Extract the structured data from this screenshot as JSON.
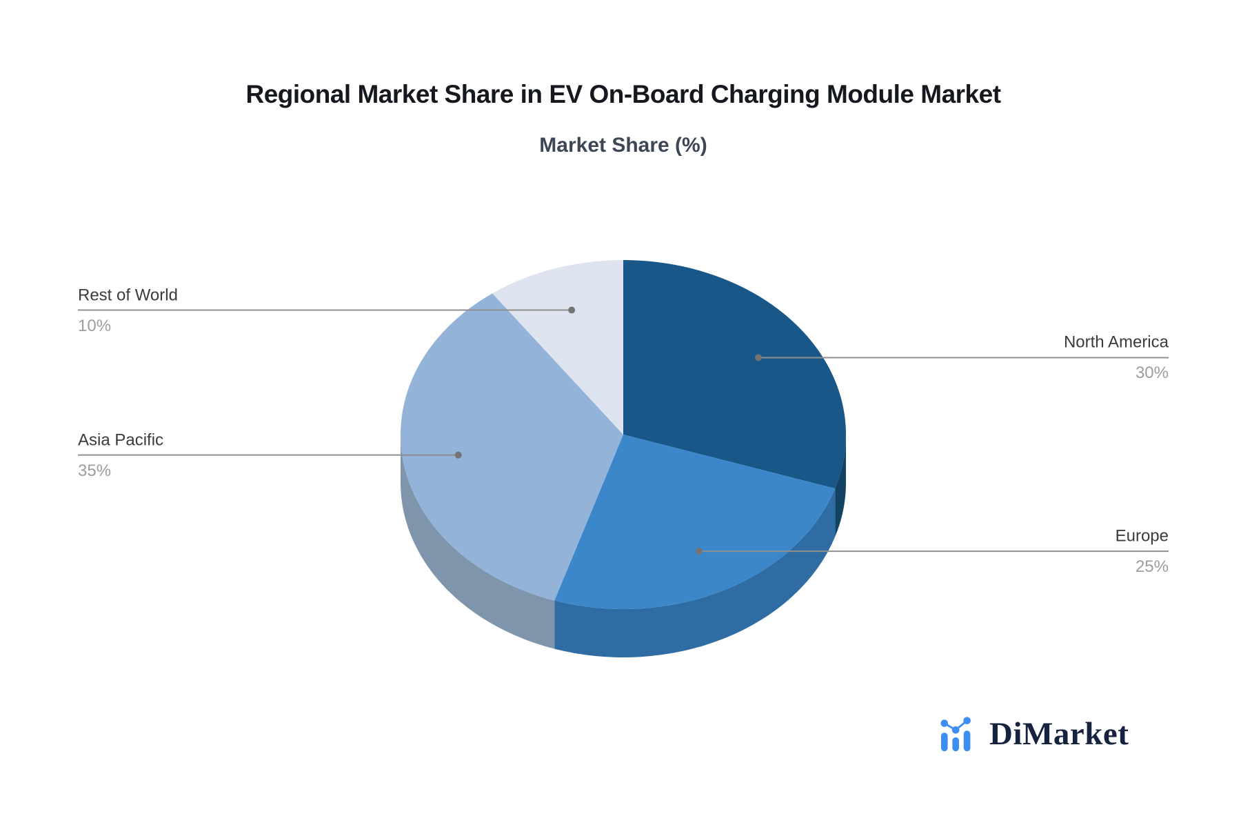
{
  "title": "Regional Market Share in EV On-Board Charging Module Market",
  "subtitle": "Market Share (%)",
  "brand": {
    "name": "DiMarket",
    "icon": "bar-line-chart-icon",
    "icon_color": "#3e8df2",
    "text_color": "#16233f"
  },
  "chart_data": {
    "type": "pie",
    "title": "Regional Market Share in EV On-Board Charging Module Market",
    "subtitle": "Market Share (%)",
    "unit": "%",
    "effect_3d": true,
    "direction": "clockwise",
    "start_angle": "12-o-clock",
    "slices": [
      {
        "label": "North America",
        "value": 30,
        "display_value": "30%",
        "color": "#1a5789",
        "side_color": "#134263",
        "label_side": "right"
      },
      {
        "label": "Europe",
        "value": 25,
        "display_value": "25%",
        "color": "#3b87ca",
        "side_color": "#2e6ca3",
        "label_side": "right"
      },
      {
        "label": "Asia Pacific",
        "value": 35,
        "display_value": "35%",
        "color": "#94b3d8",
        "side_color": "#7e95ab",
        "label_side": "left"
      },
      {
        "label": "Rest of World",
        "value": 10,
        "display_value": "10%",
        "color": "#dde4ef",
        "label_side": "left"
      }
    ],
    "label_color": "#3b3b3b",
    "value_color": "#9d9d9d",
    "leader_line_color": "#8f8f8f",
    "leader_dot_color": "#747474",
    "legend": "none"
  }
}
